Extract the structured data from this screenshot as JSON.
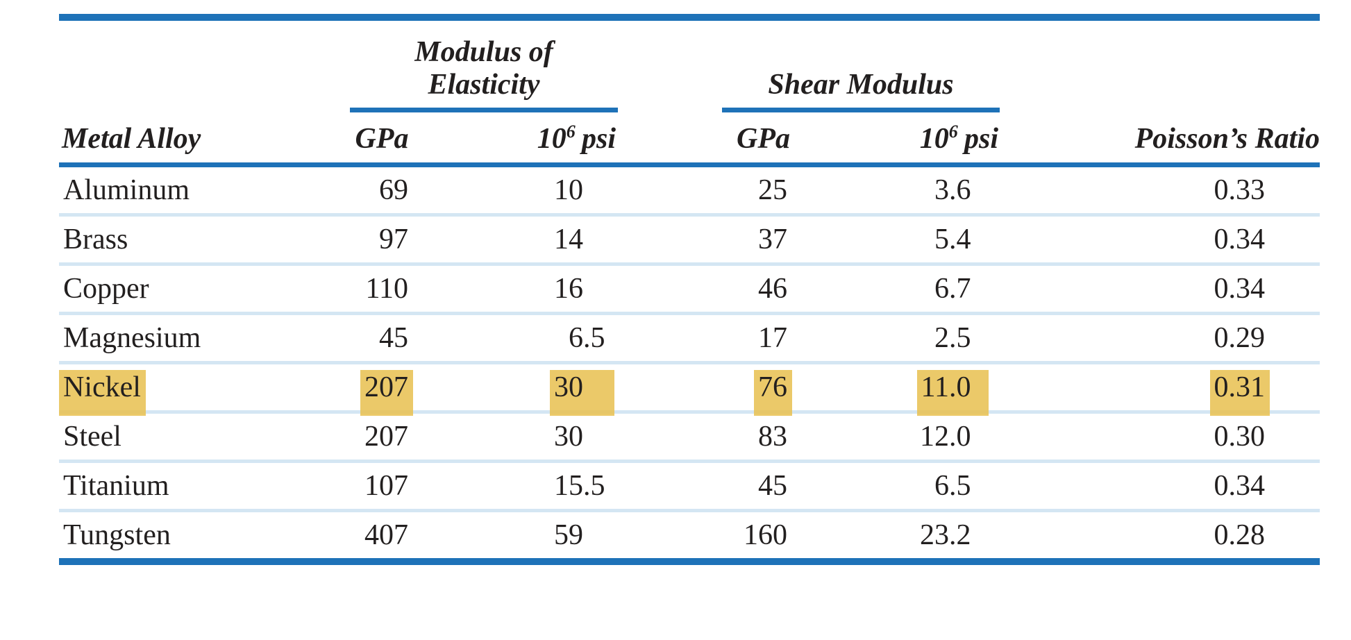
{
  "table": {
    "groups": {
      "elasticity": {
        "line1": "Modulus of",
        "line2": "Elasticity"
      },
      "shear": {
        "label": "Shear Modulus"
      }
    },
    "columns": {
      "alloy": "Metal Alloy",
      "gpa_elastic": "GPa",
      "psi_elastic": {
        "base": "10",
        "exp": "6",
        "unit": "psi"
      },
      "gpa_shear": "GPa",
      "psi_shear": {
        "base": "10",
        "exp": "6",
        "unit": "psi"
      },
      "poisson": "Poisson’s Ratio"
    },
    "rows": [
      {
        "alloy": "Aluminum",
        "e_gpa": "69",
        "e_psi": "10",
        "g_gpa": "25",
        "g_psi": "3.6",
        "poisson": "0.33",
        "highlighted": false
      },
      {
        "alloy": "Brass",
        "e_gpa": "97",
        "e_psi": "14",
        "g_gpa": "37",
        "g_psi": "5.4",
        "poisson": "0.34",
        "highlighted": false
      },
      {
        "alloy": "Copper",
        "e_gpa": "110",
        "e_psi": "16",
        "g_gpa": "46",
        "g_psi": "6.7",
        "poisson": "0.34",
        "highlighted": false
      },
      {
        "alloy": "Magnesium",
        "e_gpa": "45",
        "e_psi": "6.5",
        "g_gpa": "17",
        "g_psi": "2.5",
        "poisson": "0.29",
        "highlighted": false
      },
      {
        "alloy": "Nickel",
        "e_gpa": "207",
        "e_psi": "30",
        "g_gpa": "76",
        "g_psi": "11.0",
        "poisson": "0.31",
        "highlighted": true
      },
      {
        "alloy": "Steel",
        "e_gpa": "207",
        "e_psi": "30",
        "g_gpa": "83",
        "g_psi": "12.0",
        "poisson": "0.30",
        "highlighted": false
      },
      {
        "alloy": "Titanium",
        "e_gpa": "107",
        "e_psi": "15.5",
        "g_gpa": "45",
        "g_psi": "6.5",
        "poisson": "0.34",
        "highlighted": false
      },
      {
        "alloy": "Tungsten",
        "e_gpa": "407",
        "e_psi": "59",
        "g_gpa": "160",
        "g_psi": "23.2",
        "poisson": "0.28",
        "highlighted": false
      }
    ],
    "colors": {
      "rule_blue": "#1e72b8",
      "separator_blue": "#d4e6f3",
      "highlight_yellow": "#e8c254",
      "text_ink": "#221f1f"
    }
  }
}
